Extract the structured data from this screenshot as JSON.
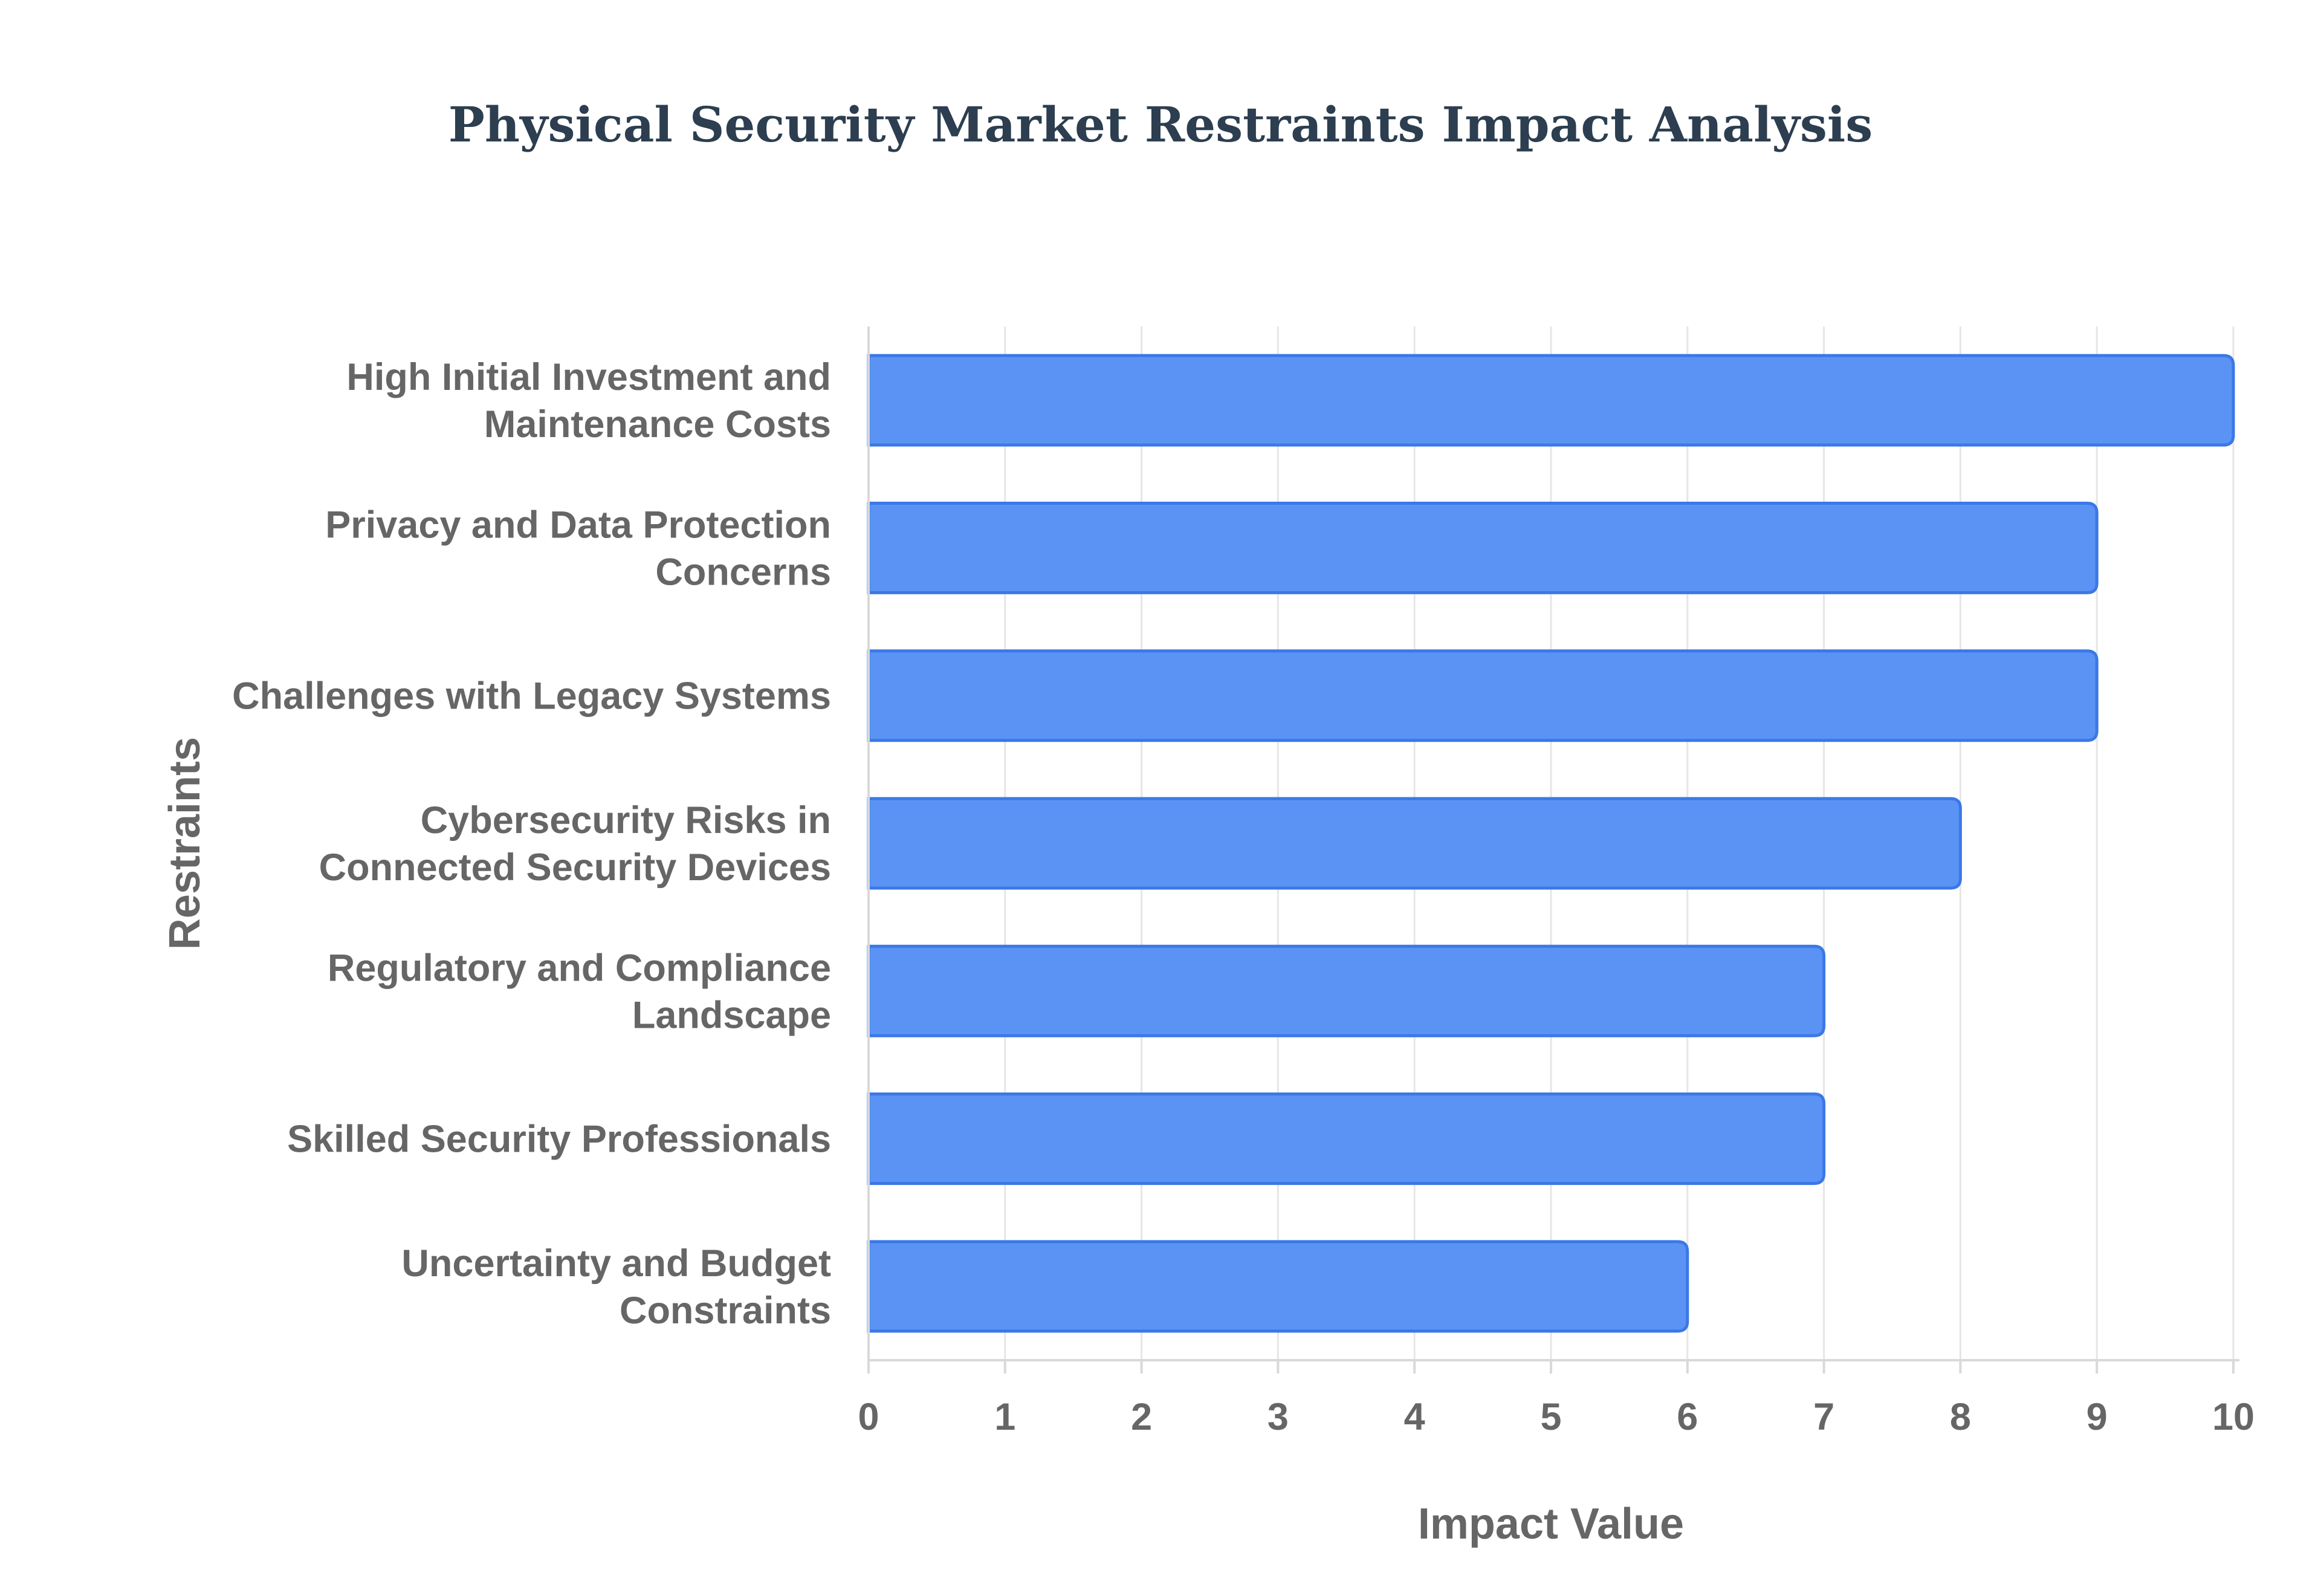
{
  "chart_data": {
    "type": "bar",
    "orientation": "horizontal",
    "title": "Physical Security Market Restraints Impact Analysis",
    "xlabel": "Impact Value",
    "ylabel": "Restraints",
    "categories": [
      [
        "High Initial Investment and",
        "Maintenance Costs"
      ],
      [
        "Privacy and Data Protection",
        "Concerns"
      ],
      [
        "Challenges with Legacy Systems"
      ],
      [
        "Cybersecurity Risks in",
        "Connected Security Devices"
      ],
      [
        "Regulatory and Compliance",
        "Landscape"
      ],
      [
        "Skilled Security Professionals"
      ],
      [
        "Uncertainty and Budget",
        "Constraints"
      ]
    ],
    "values": [
      10,
      9,
      9,
      8,
      7,
      7,
      6
    ],
    "xlim": [
      0,
      10
    ],
    "x_ticks": [
      "0",
      "1",
      "2",
      "3",
      "4",
      "5",
      "6",
      "7",
      "8",
      "9",
      "10"
    ],
    "grid": "vertical",
    "legend": "none",
    "colors": {
      "bar_fill": "#5b93f5",
      "bar_border": "#3b78e7",
      "grid": "#e6e6e6",
      "axis": "#d9d9d9",
      "text": "#666666",
      "title": "#2c3e50"
    }
  }
}
